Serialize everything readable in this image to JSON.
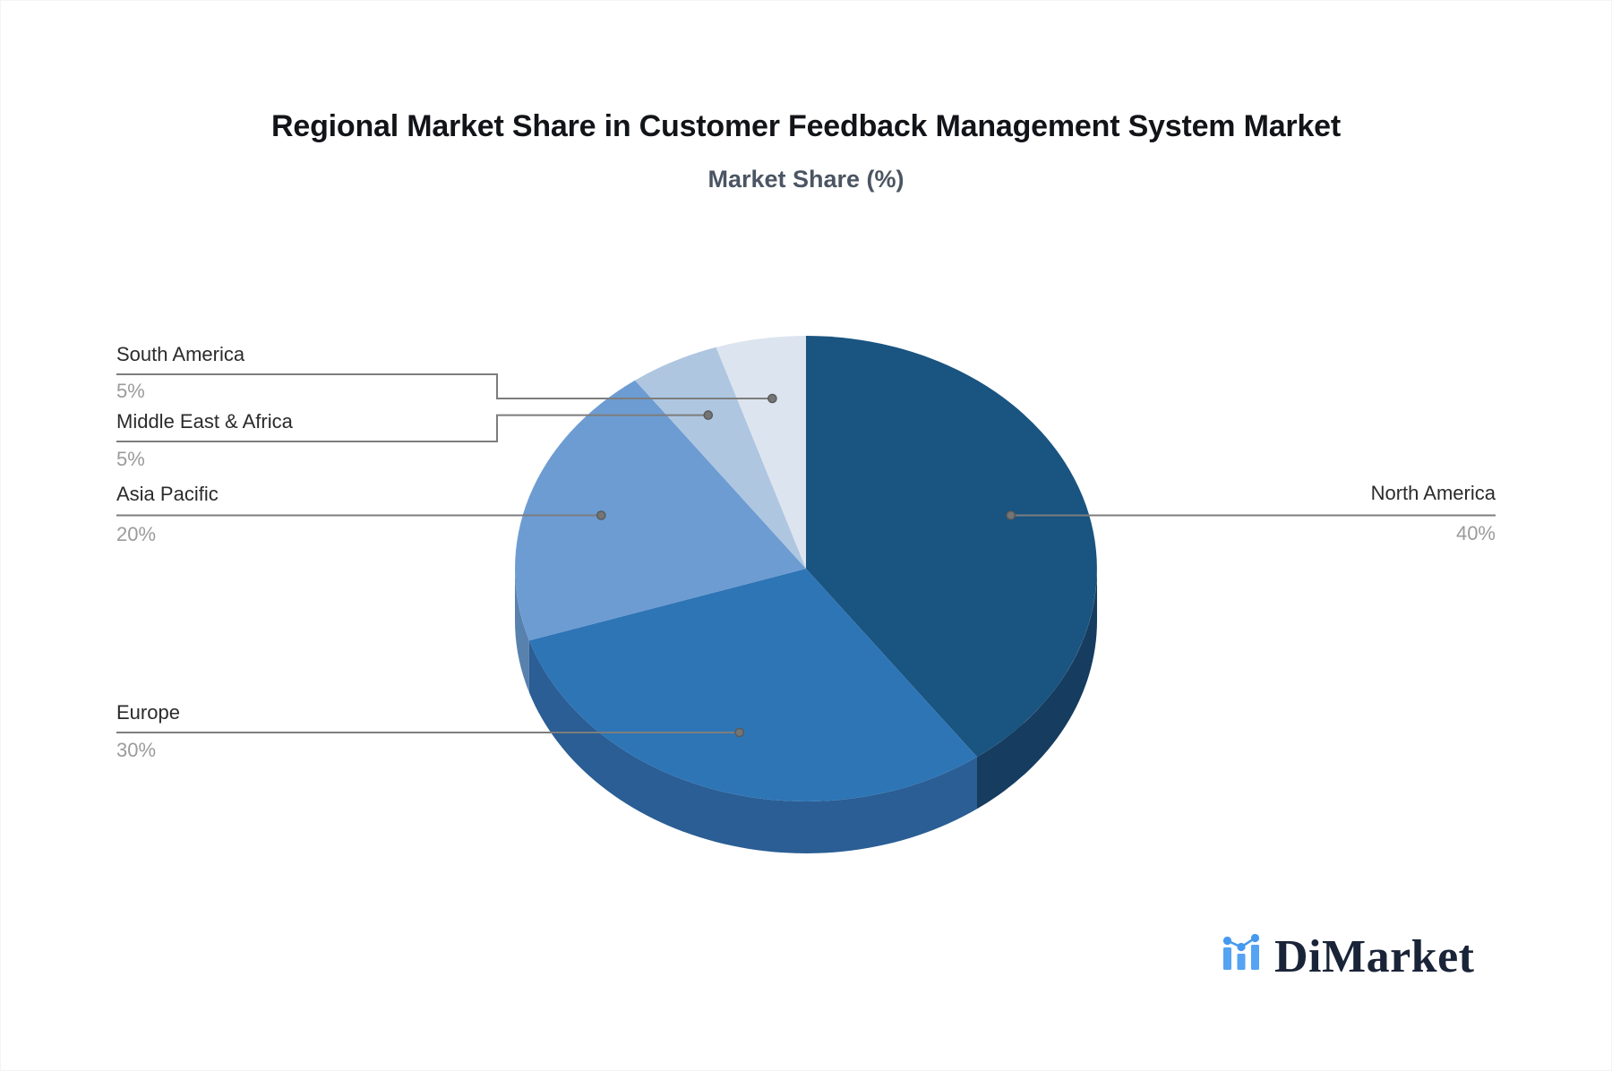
{
  "header": {
    "title": "Regional Market Share in Customer Feedback Management System Market",
    "subtitle": "Market Share (%)"
  },
  "chart_data": {
    "type": "pie",
    "title": "Regional Market Share in Customer Feedback Management System Market",
    "subtitle": "Market Share (%)",
    "unit": "%",
    "pie_style": "3d",
    "start_angle_deg": 0,
    "direction": "clockwise",
    "legend_position": "callouts",
    "segments": [
      {
        "label": "North America",
        "value": 40,
        "display_value": "40%",
        "color": "#1A5480",
        "side_color": "#163C5F",
        "label_side": "right"
      },
      {
        "label": "Europe",
        "value": 30,
        "display_value": "30%",
        "color": "#2E75B6",
        "side_color": "#2A5E94",
        "label_side": "left"
      },
      {
        "label": "Asia Pacific",
        "value": 20,
        "display_value": "20%",
        "color": "#6D9CD2",
        "side_color": "#5881AD",
        "label_side": "left"
      },
      {
        "label": "Middle East & Africa",
        "value": 5,
        "display_value": "5%",
        "color": "#AEC6E0",
        "side_color": "#8FABC8",
        "label_side": "left"
      },
      {
        "label": "South America",
        "value": 5,
        "display_value": "5%",
        "color": "#DCE4EF",
        "side_color": "#BCC9DB",
        "label_side": "left"
      }
    ],
    "colors": {
      "leader_line": "#7D7D7D",
      "leader_dot": "#757575",
      "label_text": "#2B2B2B",
      "value_text": "#9B9B9B"
    }
  },
  "branding": {
    "logo_text": "DiMarket",
    "logo_icon": "bar-line-chart-icon",
    "logo_text_color": "#1A2438",
    "logo_icon_color": "#55A3F2"
  }
}
